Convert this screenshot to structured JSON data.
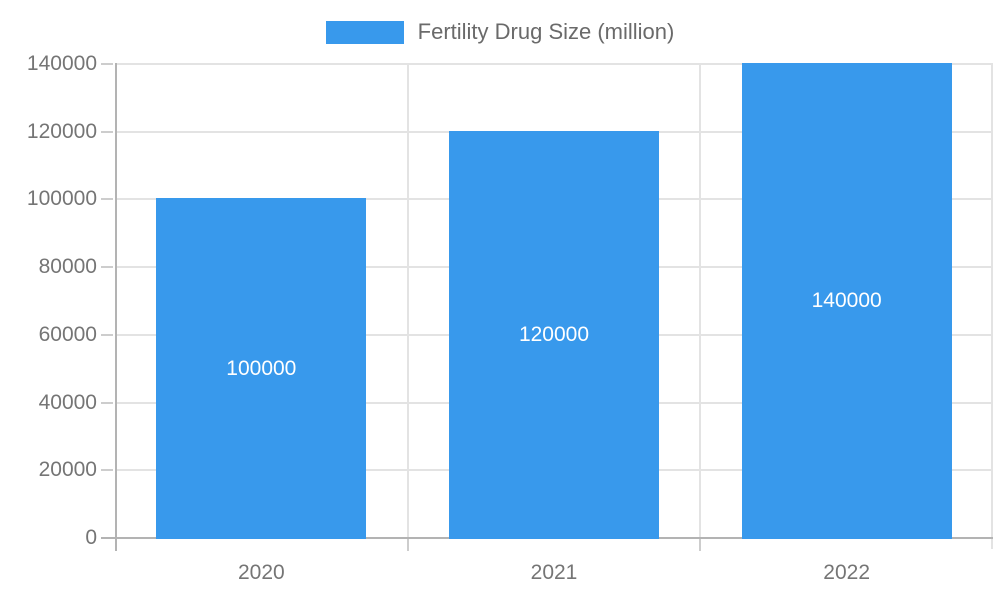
{
  "chart_data": {
    "type": "bar",
    "title": "Fertility Drug Size (million)",
    "legend": {
      "position": "top",
      "label": "Fertility Drug Size (million)"
    },
    "categories": [
      "2020",
      "2021",
      "2022"
    ],
    "series": [
      {
        "name": "Fertility Drug Size (million)",
        "values": [
          100000,
          120000,
          140000
        ]
      }
    ],
    "data_labels": [
      "100000",
      "120000",
      "140000"
    ],
    "xlabel": "",
    "ylabel": "",
    "ylim": [
      0,
      140000
    ],
    "ytick_step": 20000,
    "ytick_labels": [
      "0",
      "20000",
      "40000",
      "60000",
      "80000",
      "100000",
      "120000",
      "140000"
    ],
    "grid": true,
    "colors": {
      "bar": "#3899ec",
      "data_label": "#ffffff",
      "grid_line": "#e3e3e3",
      "axis_line": "#b3b3b3",
      "tick_mark": "#cdcdcd",
      "tick_label": "#757575",
      "legend_text": "#6a6a6a",
      "background": "#ffffff"
    }
  }
}
